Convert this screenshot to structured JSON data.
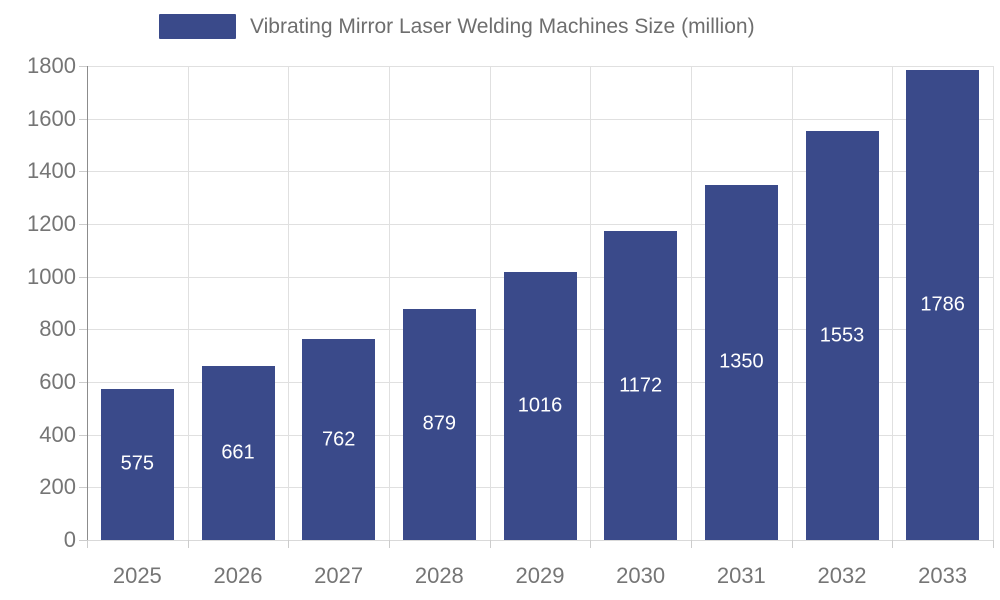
{
  "legend": {
    "swatch_color": "#3A4A8A",
    "label": "Vibrating Mirror Laser Welding Machines Size (million)"
  },
  "chart_data": {
    "type": "bar",
    "title": "Vibrating Mirror Laser Welding Machines Size (million)",
    "categories": [
      "2025",
      "2026",
      "2027",
      "2028",
      "2029",
      "2030",
      "2031",
      "2032",
      "2033"
    ],
    "values": [
      575,
      661,
      762,
      879,
      1016,
      1172,
      1350,
      1553,
      1786
    ],
    "xlabel": "",
    "ylabel": "",
    "ylim": [
      0,
      1800
    ],
    "yticks": [
      0,
      200,
      400,
      600,
      800,
      1000,
      1200,
      1400,
      1600,
      1800
    ],
    "grid": true,
    "legend_position": "top-center",
    "colors": {
      "bar": "#3A4A8A",
      "value_label": "#FFFFFF",
      "axis_label": "#757575",
      "legend_label": "#6E6E6E",
      "gridline": "#E0E0E0",
      "axis_line": "#8C8C8C",
      "tick": "#CCCCCC",
      "background": "#FFFFFF"
    }
  }
}
